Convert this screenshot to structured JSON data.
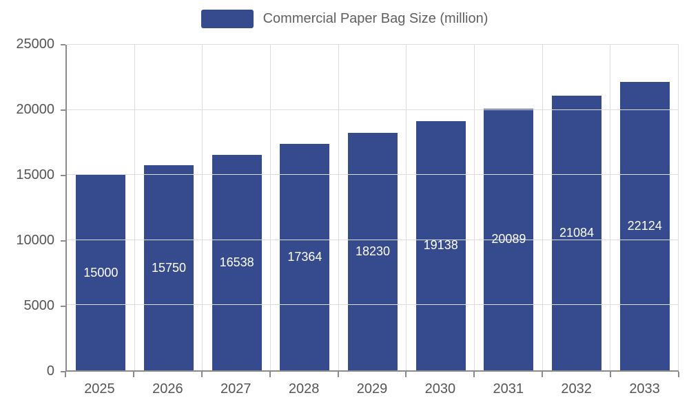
{
  "legend": {
    "label": "Commercial Paper Bag Size (million)"
  },
  "chart_data": {
    "type": "bar",
    "title": "Commercial Paper Bag Size (million)",
    "categories": [
      "2025",
      "2026",
      "2027",
      "2028",
      "2029",
      "2030",
      "2031",
      "2032",
      "2033"
    ],
    "values": [
      15000,
      15750,
      16538,
      17364,
      18230,
      19138,
      20089,
      21084,
      22124
    ],
    "xlabel": "",
    "ylabel": "",
    "ylim": [
      0,
      25000
    ],
    "yticks": [
      0,
      5000,
      10000,
      15000,
      20000,
      25000
    ],
    "bar_color": "#364b8e",
    "bar_label_color": "#ffffff",
    "grid": true,
    "legend_position": "top"
  }
}
